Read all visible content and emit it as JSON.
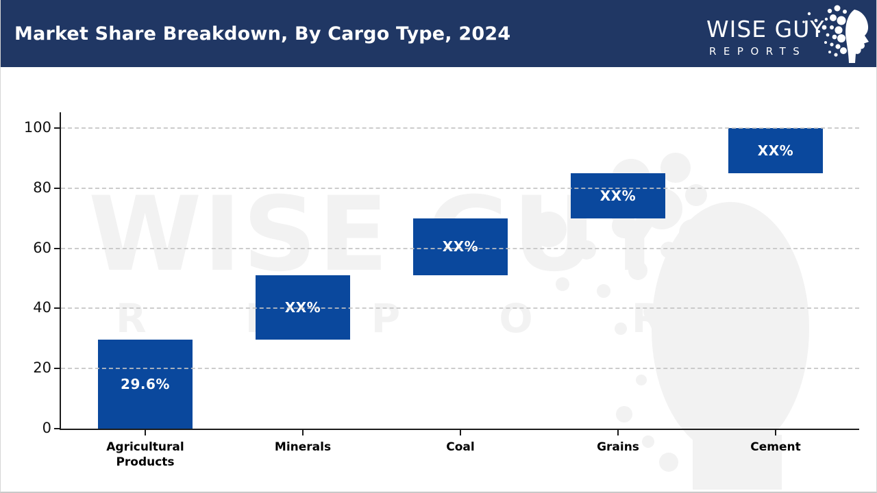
{
  "header": {
    "title": "Market Share Breakdown, By Cargo Type, 2024",
    "bg_color": "#203764",
    "logo": {
      "line1": "WISE GUY",
      "line2": "REPORTS",
      "icon": "dotted-head-profile-icon",
      "text_color": "#ffffff"
    }
  },
  "watermark": {
    "line1": "WISE GUY",
    "line2": "R E P O R T S",
    "icon": "dotted-head-profile-watermark-icon",
    "color": "#f2f2f2"
  },
  "chart_data": {
    "type": "bar",
    "variant": "waterfall",
    "title": "Market Share Breakdown, By Cargo Type, 2024",
    "categories": [
      "Agricultural Products",
      "Minerals",
      "Coal",
      "Grains",
      "Cement"
    ],
    "segments": [
      {
        "category": "Agricultural Products",
        "start": 0,
        "end": 29.6,
        "label": "29.6%"
      },
      {
        "category": "Minerals",
        "start": 29.6,
        "end": 51,
        "label": "XX%"
      },
      {
        "category": "Coal",
        "start": 51,
        "end": 70,
        "label": "XX%"
      },
      {
        "category": "Grains",
        "start": 70,
        "end": 85,
        "label": "XX%"
      },
      {
        "category": "Cement",
        "start": 85,
        "end": 100,
        "label": "XX%"
      }
    ],
    "yticks": [
      0,
      20,
      40,
      60,
      80,
      100
    ],
    "ylim": [
      0,
      105
    ],
    "xlabel": "",
    "ylabel": "",
    "grid": "horizontal-dashed",
    "legend": "none",
    "bar_color": "#0a489d",
    "value_label_color": "#ffffff"
  }
}
